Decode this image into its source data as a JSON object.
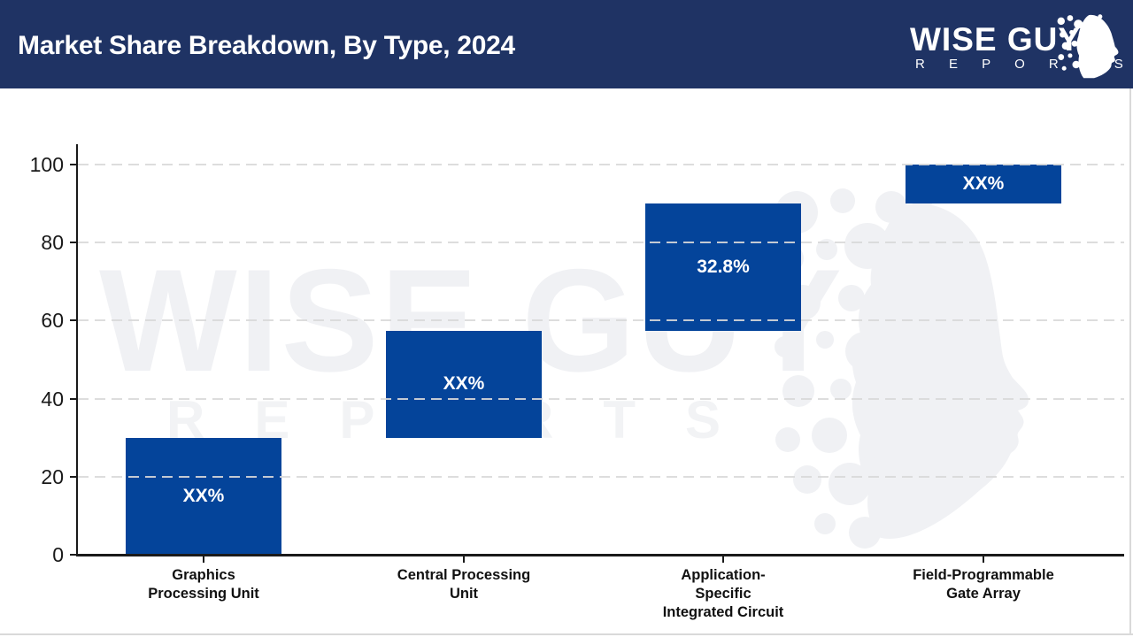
{
  "header": {
    "title": "Market Share Breakdown, By Type, 2024",
    "logo": {
      "line1": "WISE GUY",
      "line2": "REPORTS"
    }
  },
  "watermark": {
    "line1": "WISE GUY",
    "line2": "REPORTS"
  },
  "colors": {
    "header_bg": "#1f3364",
    "bar": "#04449a",
    "gridline": "#d9d9d9",
    "axis": "#1a1a1a",
    "watermark": "#f0f1f4"
  },
  "chart_data": {
    "type": "bar",
    "subtype": "waterfall",
    "title": "Market Share Breakdown, By Type, 2024",
    "xlabel": "",
    "ylabel": "",
    "ylim": [
      0,
      100
    ],
    "y_ticks": [
      0,
      20,
      40,
      60,
      80,
      100
    ],
    "grid": "horizontal dashed, drawn over bars",
    "legend": "none",
    "bar_color": "#04449a",
    "categories": [
      "Graphics Processing Unit",
      "Central Processing Unit",
      "Application-Specific Integrated Circuit",
      "Field-Programmable Gate Array"
    ],
    "segments": [
      {
        "category": "Graphics Processing Unit",
        "display_label": "Graphics\nProcessing Unit",
        "start": 0,
        "end": 30,
        "value_label": "XX%"
      },
      {
        "category": "Central Processing Unit",
        "display_label": "Central Processing\nUnit",
        "start": 30,
        "end": 57.3,
        "value_label": "XX%"
      },
      {
        "category": "Application-Specific Integrated Circuit",
        "display_label": "Application-\nSpecific\nIntegrated Circuit",
        "start": 57.3,
        "end": 90.1,
        "value_label": "32.8%"
      },
      {
        "category": "Field-Programmable Gate Array",
        "display_label": "Field-Programmable\nGate Array",
        "start": 90.1,
        "end": 100,
        "value_label": "XX%"
      }
    ]
  }
}
